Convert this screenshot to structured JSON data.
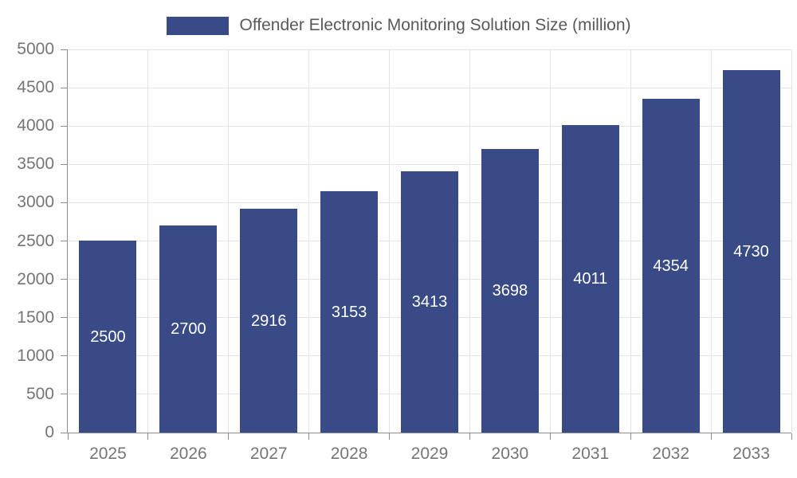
{
  "legend": {
    "label": "Offender Electronic Monitoring Solution Size (million)"
  },
  "colors": {
    "bar": "#394b87",
    "grid": "#e3e3e3",
    "axis": "#8c8c8c",
    "tick_label": "#757575",
    "legend_text": "#595959",
    "bar_value_label": "#ffffff",
    "background": "#ffffff"
  },
  "chart_data": {
    "type": "bar",
    "title": "Offender Electronic Monitoring Solution Size (million)",
    "categories": [
      "2025",
      "2026",
      "2027",
      "2028",
      "2029",
      "2030",
      "2031",
      "2032",
      "2033"
    ],
    "values": [
      2500,
      2700,
      2916,
      3153,
      3413,
      3698,
      4011,
      4354,
      4730
    ],
    "series": [
      {
        "name": "Offender Electronic Monitoring Solution Size (million)",
        "values": [
          2500,
          2700,
          2916,
          3153,
          3413,
          3698,
          4011,
          4354,
          4730
        ]
      }
    ],
    "xlabel": "",
    "ylabel": "",
    "ylim": [
      0,
      5000
    ],
    "ytick_step": 500,
    "ytick_labels": [
      "0",
      "500",
      "1000",
      "1500",
      "2000",
      "2500",
      "3000",
      "3500",
      "4000",
      "4500",
      "5000"
    ],
    "grid": "horizontal and vertical light gray gridlines",
    "legend_position": "top-center",
    "value_label_position": "inside-center-white"
  }
}
